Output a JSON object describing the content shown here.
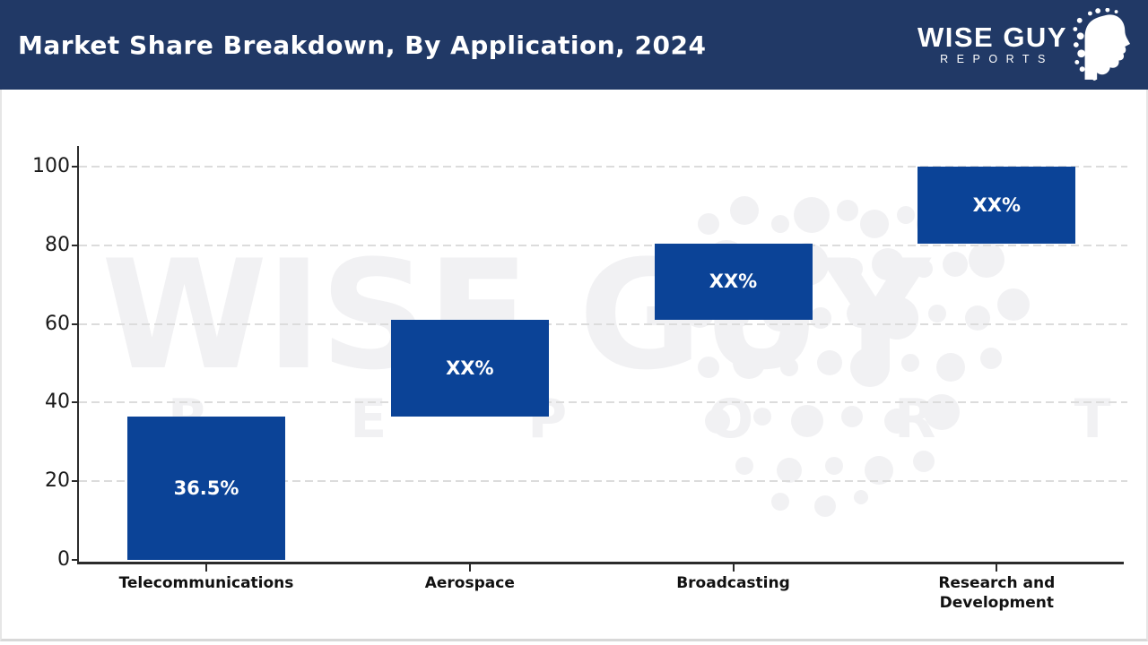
{
  "header": {
    "title": "Market Share Breakdown, By Application, 2024",
    "logo": {
      "line1": "WISE GUY",
      "line2": "REPORTS"
    }
  },
  "watermark": {
    "line1": "WISE GUY",
    "line2": "REPORTS"
  },
  "chart_data": {
    "type": "bar",
    "subtype": "waterfall-stacked-percent",
    "title": "Market Share Breakdown, By Application, 2024",
    "categories": [
      "Telecommunications",
      "Aerospace",
      "Broadcasting",
      "Research and Development"
    ],
    "segments": [
      {
        "category": "Telecommunications",
        "label": "36.5%",
        "from": 0,
        "to": 36.5
      },
      {
        "category": "Aerospace",
        "label": "XX%",
        "from": 36.5,
        "to": 61
      },
      {
        "category": "Broadcasting",
        "label": "XX%",
        "from": 61,
        "to": 80.5
      },
      {
        "category": "Research and Development",
        "label": "XX%",
        "from": 80.5,
        "to": 100
      }
    ],
    "values": [
      36.5,
      24.5,
      19.5,
      19.5
    ],
    "value_labels": [
      "36.5%",
      "XX%",
      "XX%",
      "XX%"
    ],
    "xlabel": "",
    "ylabel": "",
    "ylim": [
      0,
      100
    ],
    "yticks": [
      0,
      20,
      40,
      60,
      80,
      100
    ],
    "grid": "horizontal-dashed",
    "legend": "none"
  },
  "colors": {
    "header_bg": "#213966",
    "bar": "#0b4397",
    "axis": "#2b2b2b",
    "grid": "#dcdcdc",
    "watermark": "#f1f1f3",
    "bar_label": "#ffffff"
  }
}
